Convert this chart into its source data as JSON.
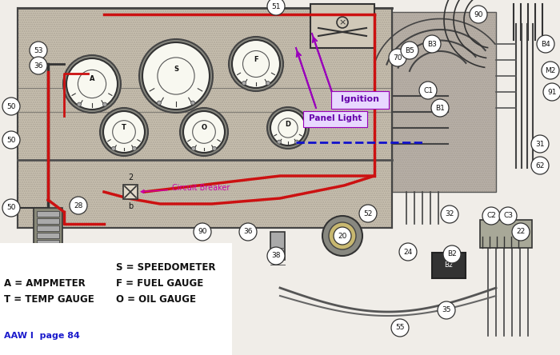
{
  "figsize": [
    7.0,
    4.44
  ],
  "dpi": 100,
  "bg_color": "#f0ede8",
  "dashboard_fill": "#b8b0a0",
  "dashboard_edge": "#444444",
  "gauge_fill": "#ffffff",
  "gauge_edge": "#333333",
  "red_wire": "#cc1111",
  "blue_wire": "#1111cc",
  "purple_wire": "#9900bb",
  "dark": "#222222",
  "text_color": "#111111",
  "page_color": "#1a1acc",
  "white": "#ffffff",
  "ignition_bg": "#e8d8ff",
  "panel_light_bg": "#e8d8ff",
  "circuit_bg": "#ff88cc",
  "page_ref": "AAW I  page 84",
  "legend_s": "S = SPEEDOMETER",
  "legend_a": "A = AMPMETER",
  "legend_f": "F = FUEL GAUGE",
  "legend_t": "T = TEMP GAUGE",
  "legend_o": "O = OIL GAUGE"
}
